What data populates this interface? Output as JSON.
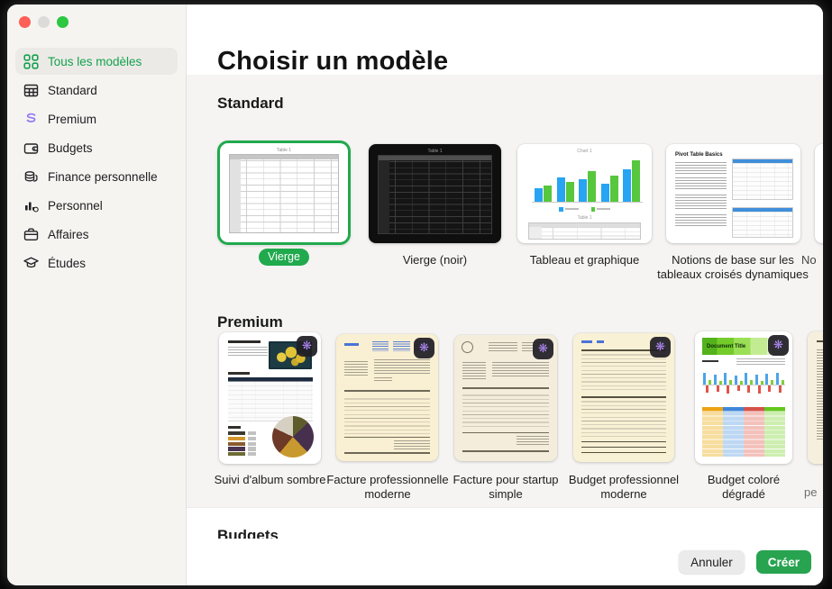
{
  "header": {
    "title": "Choisir un modèle"
  },
  "sidebar": {
    "items": [
      {
        "label": "Tous les modèles",
        "icon": "all-templates-icon",
        "selected": true
      },
      {
        "label": "Standard",
        "icon": "table-icon"
      },
      {
        "label": "Premium",
        "icon": "premium-icon"
      },
      {
        "label": "Budgets",
        "icon": "wallet-icon"
      },
      {
        "label": "Finance personnelle",
        "icon": "coins-icon"
      },
      {
        "label": "Personnel",
        "icon": "bar-chart-icon"
      },
      {
        "label": "Affaires",
        "icon": "briefcase-icon"
      },
      {
        "label": "Études",
        "icon": "graduation-cap-icon"
      }
    ]
  },
  "sections": {
    "standard": {
      "heading": "Standard",
      "templates": [
        {
          "label": "Vierge",
          "selected": true
        },
        {
          "label": "Vierge (noir)"
        },
        {
          "label": "Tableau et graphique"
        },
        {
          "label": "Notions de base sur les tableaux croisés dynamiques"
        },
        {
          "label": "No",
          "partial": true
        }
      ]
    },
    "premium": {
      "heading": "Premium",
      "templates": [
        {
          "label": "Suivi d'album sombre",
          "premium": true
        },
        {
          "label": "Facture professionnelle moderne",
          "premium": true
        },
        {
          "label": "Facture pour startup simple",
          "premium": true
        },
        {
          "label": "Budget professionnel moderne",
          "premium": true
        },
        {
          "label": "Budget coloré dégradé",
          "premium": true
        },
        {
          "label": "pe",
          "premium": true,
          "partial": true
        }
      ]
    },
    "budgets": {
      "heading": "Budgets"
    }
  },
  "footer": {
    "cancel_label": "Annuler",
    "create_label": "Créer"
  },
  "thumbnails": {
    "table_caption": "Table 1",
    "chart_caption": "Chart 1",
    "pivot_title": "Pivot Table Basics",
    "doc_title": "Document Title",
    "chart": {
      "type": "bar",
      "series": [
        {
          "name": "Category A",
          "color": "#27a4f2",
          "values": [
            15,
            27,
            25,
            20,
            36
          ]
        },
        {
          "name": "Category B",
          "color": "#57c73d",
          "values": [
            18,
            22,
            34,
            29,
            46
          ]
        }
      ]
    },
    "budget_chart": {
      "up": [
        13,
        11,
        13,
        10,
        13,
        11,
        12,
        13
      ],
      "green": [
        5,
        4,
        5,
        4,
        5,
        4,
        5,
        5
      ],
      "down": [
        8,
        7,
        9,
        6,
        8,
        9,
        7,
        8
      ]
    },
    "pie_slices": [
      {
        "color": "#5e5b2c",
        "pct": 13
      },
      {
        "color": "#46304d",
        "pct": 25
      },
      {
        "color": "#c8992e",
        "pct": 23
      },
      {
        "color": "#6e3a28",
        "pct": 21
      },
      {
        "color": "#d6d0c2",
        "pct": 18
      }
    ],
    "totals_colors": [
      "#3c3930",
      "#d4952c",
      "#8a5a2e",
      "#4a3450",
      "#6d6a34"
    ]
  },
  "colors": {
    "accent_green": "#21a94e",
    "create_button_green": "#28a350",
    "premium_purple": "#af88f6",
    "sidebar_selected_text": "#13a24f"
  }
}
